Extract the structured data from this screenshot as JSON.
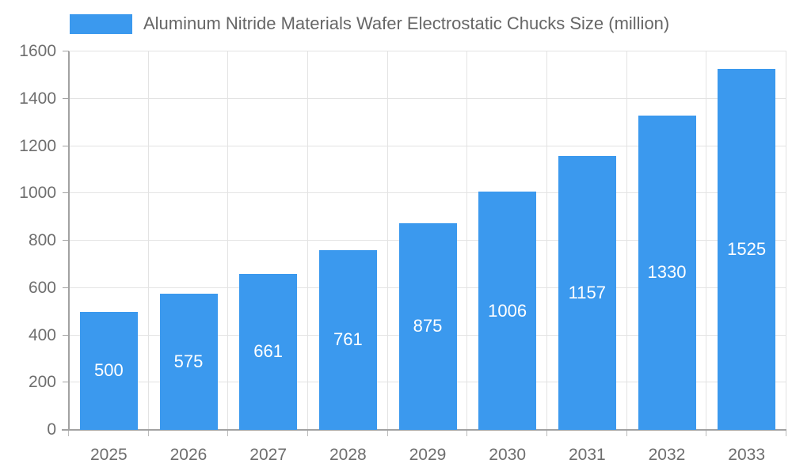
{
  "legend": {
    "label": "Aluminum Nitride Materials Wafer Electrostatic Chucks Size (million)"
  },
  "chart_data": {
    "type": "bar",
    "title": "Aluminum Nitride Materials Wafer Electrostatic Chucks Size (million)",
    "categories": [
      "2025",
      "2026",
      "2027",
      "2028",
      "2029",
      "2030",
      "2031",
      "2032",
      "2033"
    ],
    "values": [
      500,
      575,
      661,
      761,
      875,
      1006,
      1157,
      1330,
      1525
    ],
    "series": [
      {
        "name": "Aluminum Nitride Materials Wafer Electrostatic Chucks Size (million)",
        "values": [
          500,
          575,
          661,
          761,
          875,
          1006,
          1157,
          1330,
          1525
        ]
      }
    ],
    "xlabel": "",
    "ylabel": "",
    "ylim": [
      0,
      1600
    ],
    "yticks": [
      0,
      200,
      400,
      600,
      800,
      1000,
      1200,
      1400,
      1600
    ],
    "grid": true,
    "legend_position": "top-left",
    "value_label_position": "inside-center",
    "colors": {
      "bar": "#3B99EE",
      "grid_line": "#E3E3E3",
      "axis_line": "#A2A2A2",
      "tick_mark": "#BBBBBB",
      "tick_text": "#6E6E6E",
      "legend_text": "#666666",
      "value_text": "#FFFFFF",
      "background": "#FFFFFF"
    }
  }
}
